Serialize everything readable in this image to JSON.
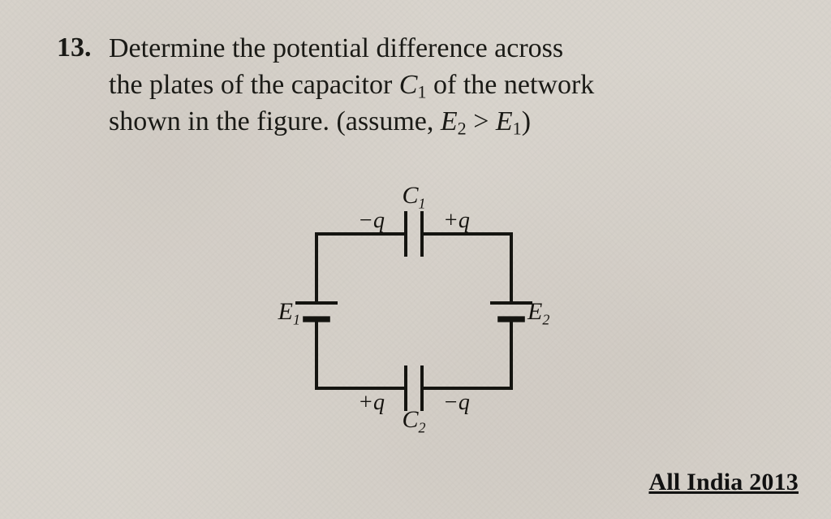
{
  "question": {
    "number": "13.",
    "line1": "Determine the potential difference across",
    "line2_prefix": "the plates of the capacitor ",
    "c1_sym": "C",
    "c1_sub": "1",
    "line2_suffix": " of the network",
    "line3_prefix": "shown in the figure. (assume, ",
    "e2_sym": "E",
    "e2_sub": "2",
    "gt": " > ",
    "e1_sym": "E",
    "e1_sub": "1",
    "line3_suffix": ")"
  },
  "diagram": {
    "stroke_color": "#141410",
    "stroke_width": 4,
    "labels": {
      "C1": "C",
      "C1_sub": "1",
      "C2": "C",
      "C2_sub": "2",
      "E1": "E",
      "E1_sub": "1",
      "E2": "E",
      "E2_sub": "2",
      "top_minus_q": "−q",
      "top_plus_q": "+q",
      "bot_plus_q": "+q",
      "bot_minus_q": "−q"
    },
    "font_size_main": 30,
    "font_size_sub": 18,
    "font_size_q": 28,
    "colors": {
      "background": "#d9d4cd",
      "text": "#161410"
    }
  },
  "source": "All India 2013"
}
